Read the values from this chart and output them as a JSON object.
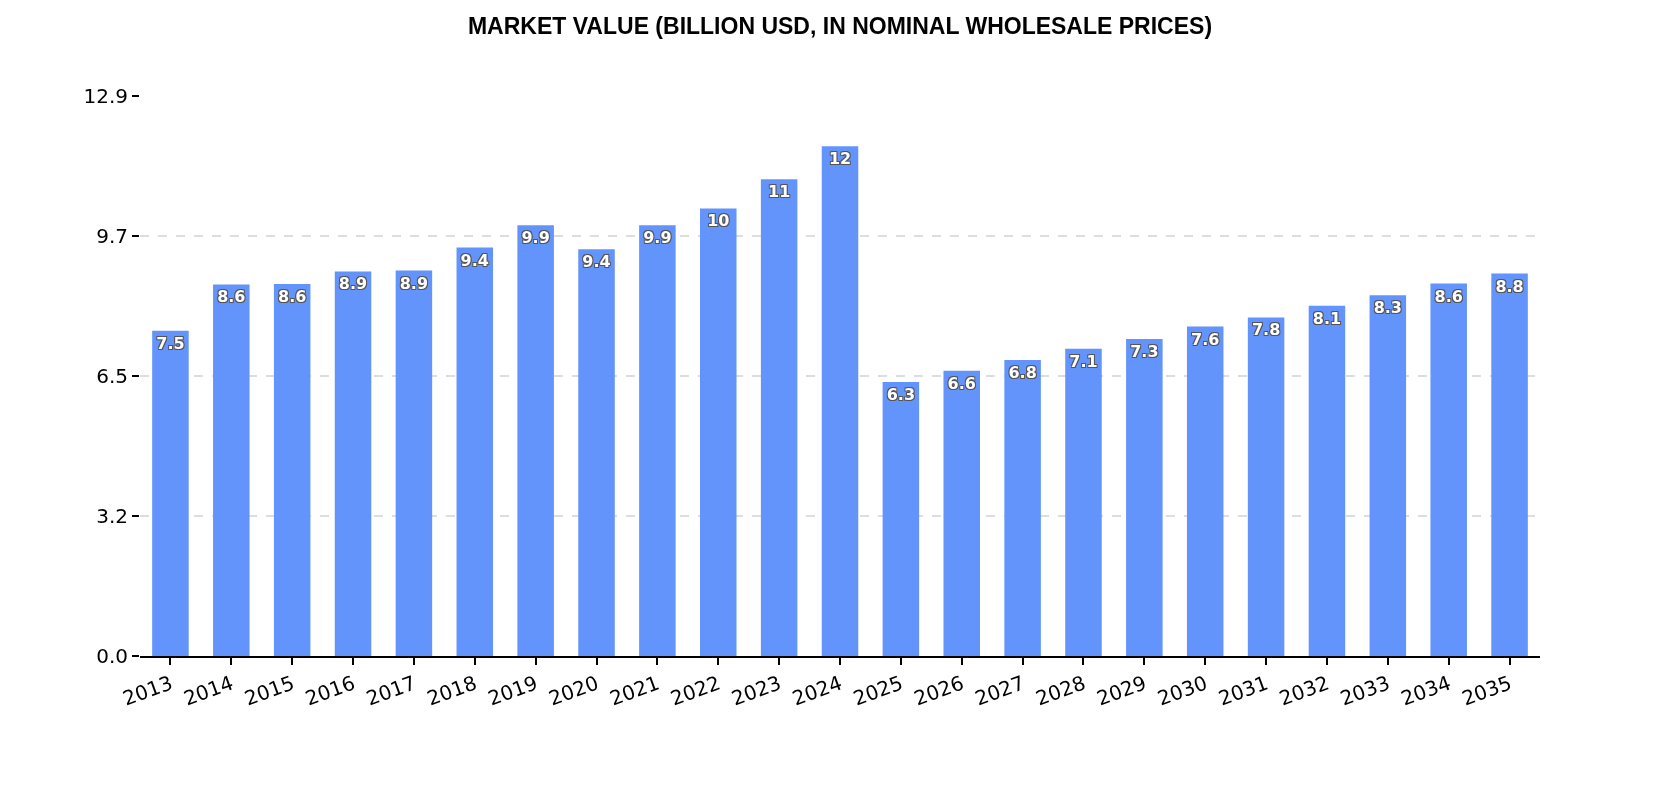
{
  "chart_data": {
    "type": "bar",
    "title": "MARKET VALUE (BILLION USD, IN NOMINAL WHOLESALE PRICES)",
    "categories": [
      "2013",
      "2014",
      "2015",
      "2016",
      "2017",
      "2018",
      "2019",
      "2020",
      "2021",
      "2022",
      "2023",
      "2024",
      "2025",
      "2026",
      "2027",
      "2028",
      "2029",
      "2030",
      "2031",
      "2032",
      "2033",
      "2034",
      "2035"
    ],
    "values": [
      7.49,
      8.56,
      8.57,
      8.86,
      8.88,
      9.41,
      9.92,
      9.37,
      9.92,
      10.31,
      10.98,
      11.74,
      6.31,
      6.57,
      6.82,
      7.08,
      7.3,
      7.59,
      7.8,
      8.07,
      8.31,
      8.58,
      8.81
    ],
    "value_labels": [
      "7.5",
      "8.6",
      "8.6",
      "8.9",
      "8.9",
      "9.4",
      "9.9",
      "9.4",
      "9.9",
      "10",
      "11",
      "12",
      "6.3",
      "6.6",
      "6.8",
      "7.1",
      "7.3",
      "7.6",
      "7.8",
      "8.1",
      "8.3",
      "8.6",
      "8.8"
    ],
    "color": "#6394fc",
    "ylim": [
      0,
      12.9
    ],
    "yticks": [
      {
        "value": 0,
        "label": "0.0"
      },
      {
        "value": 3.225,
        "label": "3.2"
      },
      {
        "value": 6.45,
        "label": "6.5"
      },
      {
        "value": 9.675,
        "label": "9.7"
      },
      12.9
    ],
    "grid": "y"
  }
}
